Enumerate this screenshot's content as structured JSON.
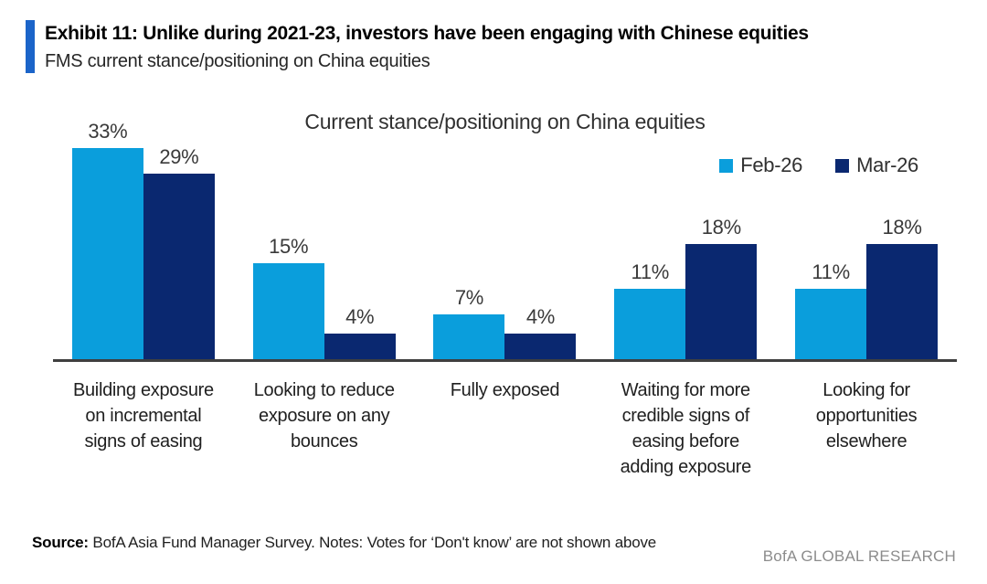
{
  "header": {
    "exhibit_title": "Exhibit 11: Unlike during 2021-23, investors have been engaging with Chinese equities",
    "subtitle": "FMS current stance/positioning on China equities",
    "accent_color": "#1B64C9"
  },
  "chart_data": {
    "type": "bar",
    "title": "Current stance/positioning on China equities",
    "categories": [
      "Building exposure\non incremental\nsigns of easing",
      "Looking to reduce\nexposure on any\nbounces",
      "Fully exposed",
      "Waiting for more\ncredible signs of\neasing before\nadding exposure",
      "Looking for\nopportunities\nelsewhere"
    ],
    "series": [
      {
        "name": "Feb-26",
        "color": "#0A9EDC",
        "values": [
          33,
          15,
          7,
          11,
          11
        ]
      },
      {
        "name": "Mar-26",
        "color": "#0A2870",
        "values": [
          29,
          4,
          4,
          18,
          18
        ]
      }
    ],
    "value_suffix": "%",
    "ylim": [
      0,
      35
    ],
    "grid": false,
    "legend_position": "top-right",
    "axis_line_color": "#3F3F3F",
    "data_labels": true
  },
  "footer": {
    "source_label": "Source:",
    "source_text": " BofA Asia Fund Manager Survey. Notes: Votes for ‘Don't know’ are not shown above",
    "branding": "BofA GLOBAL RESEARCH"
  }
}
